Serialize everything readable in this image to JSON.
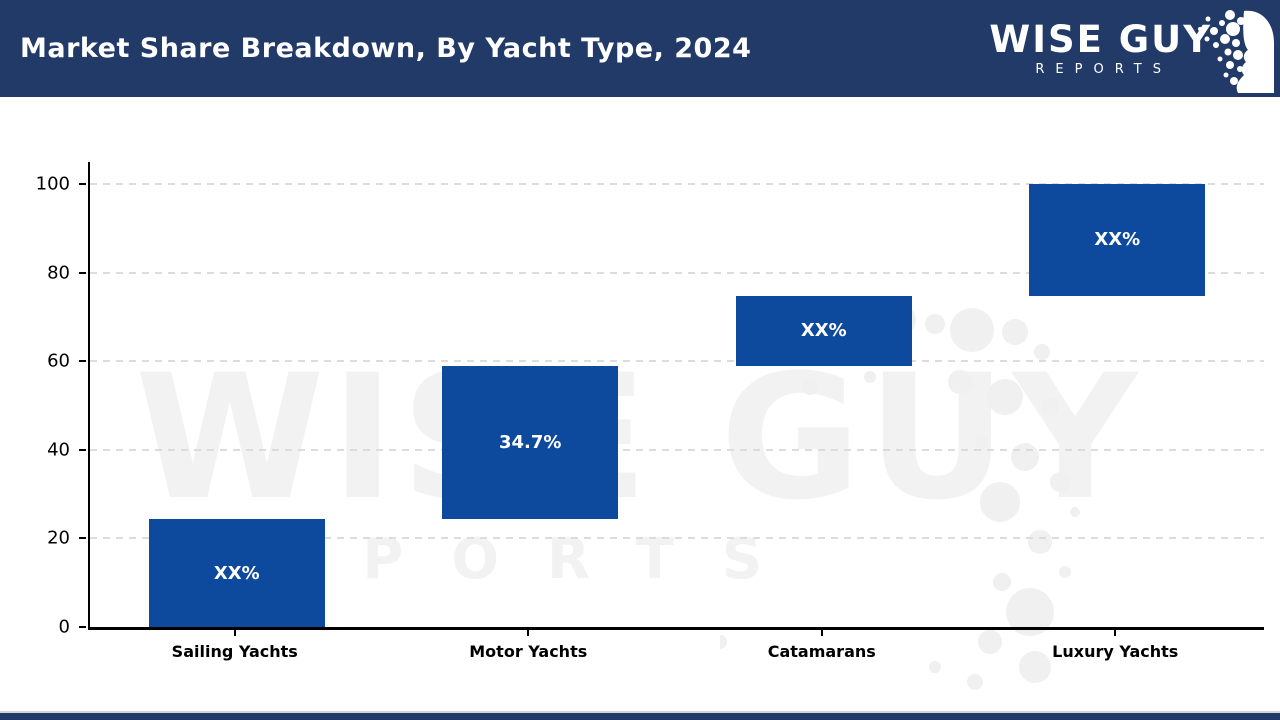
{
  "header": {
    "title": "Market Share Breakdown, By Yacht Type, 2024",
    "logo": {
      "line1": "WISE GUY",
      "line2": "REPORTS"
    }
  },
  "watermark": {
    "line1": "WISE GUY",
    "line2": "REPORTS"
  },
  "colors": {
    "header_bg": "#213A67",
    "footer_bg": "#213A67",
    "bar": "#0D4A9E",
    "bar_label": "#FFFFFF",
    "grid": "#DCDCDC",
    "axis": "#000000",
    "watermark": "#F2F2F2"
  },
  "chart_data": {
    "type": "waterfall",
    "title": "Market Share Breakdown, By Yacht Type, 2024",
    "categories": [
      "Sailing Yachts",
      "Motor Yachts",
      "Catamarans",
      "Luxury Yachts"
    ],
    "segments": [
      {
        "name": "Sailing Yachts",
        "start": 0,
        "end": 24.3,
        "value_label": "XX%"
      },
      {
        "name": "Motor Yachts",
        "start": 24.3,
        "end": 59.0,
        "value_label": "34.7%"
      },
      {
        "name": "Catamarans",
        "start": 59.0,
        "end": 74.8,
        "value_label": "XX%"
      },
      {
        "name": "Luxury Yachts",
        "start": 74.8,
        "end": 100.0,
        "value_label": "XX%"
      }
    ],
    "y_ticks": [
      0,
      20,
      40,
      60,
      80,
      100
    ],
    "ylim": [
      0,
      105
    ],
    "xlabel": "",
    "ylabel": "",
    "grid": "horizontal-dashed",
    "legend": "none",
    "bar_width_pct": 15
  }
}
